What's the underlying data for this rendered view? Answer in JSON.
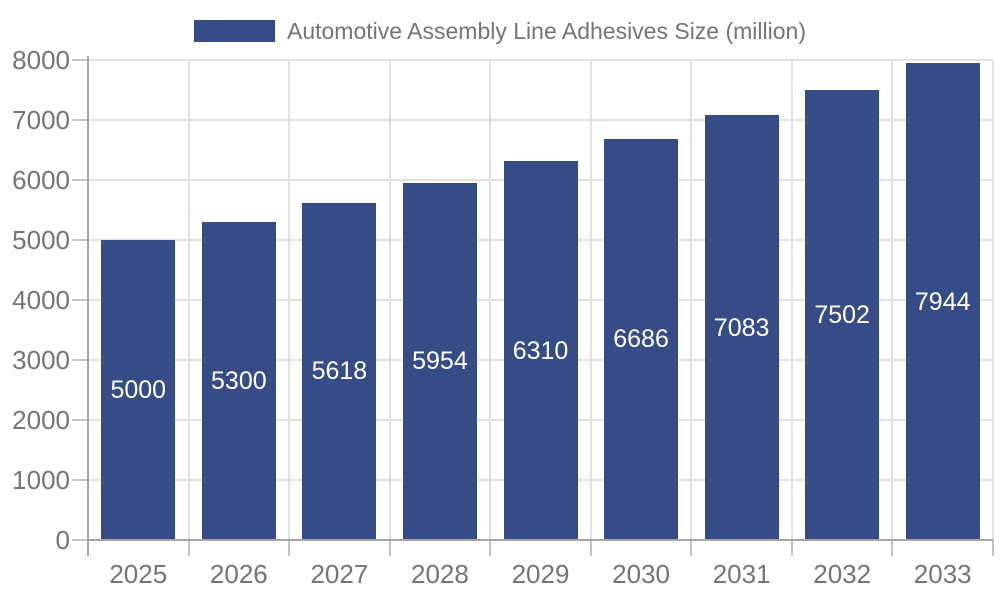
{
  "chart_data": {
    "type": "bar",
    "categories": [
      "2025",
      "2026",
      "2027",
      "2028",
      "2029",
      "2030",
      "2031",
      "2032",
      "2033"
    ],
    "values": [
      5000,
      5300,
      5618,
      5954,
      6310,
      6686,
      7083,
      7502,
      7944
    ],
    "legend": "Automotive Assembly Line Adhesives Size (million)",
    "title": "",
    "xlabel": "",
    "ylabel": "",
    "ylim": [
      0,
      8000
    ],
    "yticks": [
      0,
      1000,
      2000,
      3000,
      4000,
      5000,
      6000,
      7000,
      8000
    ],
    "grid": true,
    "legend_position": "top-center",
    "value_label_position": "inside-center",
    "colors": {
      "bar": "#364C87",
      "value_label": "#FFFFFF",
      "tick_label": "#757575",
      "legend_label": "#757575",
      "gridline": "#E2E2E2",
      "axis_line": "#A6A6A6",
      "tick": "#C4C4C4",
      "background": "#FFFFFF"
    }
  }
}
